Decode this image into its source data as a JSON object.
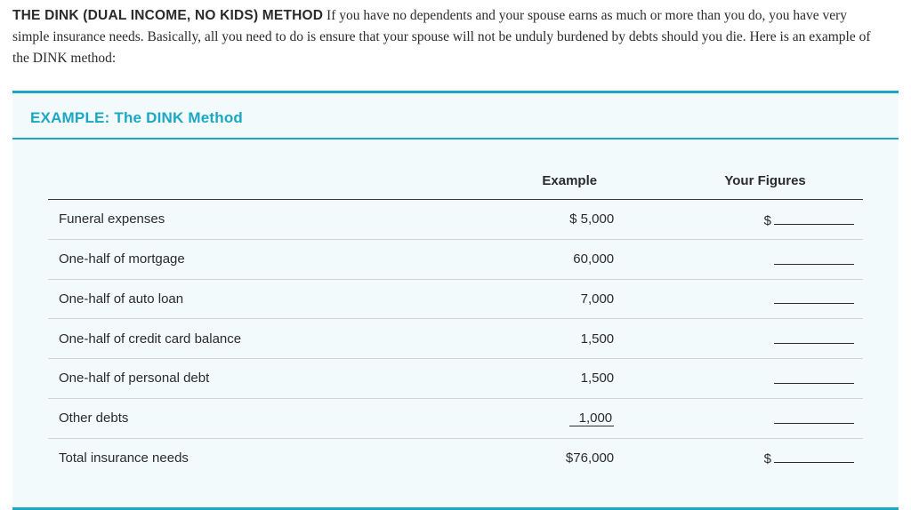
{
  "intro": {
    "heading": "THE DINK (DUAL INCOME, NO KIDS) METHOD",
    "body": " If you have no dependents and your spouse earns as much or more than you do, you have very simple insurance needs. Basically, all you need to do is ensure that your spouse will not be unduly burdened by debts should you die. Here is an example of the DINK method:"
  },
  "example": {
    "title": "EXAMPLE: The DINK Method",
    "accent_color": "#1aa8c4",
    "background_color": "#f2fafb"
  },
  "table": {
    "columns": {
      "label": "",
      "example": "Example",
      "yours": "Your Figures"
    },
    "rows": [
      {
        "label": "Funeral expenses",
        "example": "$  5,000",
        "yours_prefix": "$",
        "underlined": false
      },
      {
        "label": "One-half of mortgage",
        "example": "60,000",
        "yours_prefix": "",
        "underlined": false
      },
      {
        "label": "One-half of auto loan",
        "example": "7,000",
        "yours_prefix": "",
        "underlined": false
      },
      {
        "label": "One-half of credit card balance",
        "example": "1,500",
        "yours_prefix": "",
        "underlined": false
      },
      {
        "label": "One-half of personal debt",
        "example": "1,500",
        "yours_prefix": "",
        "underlined": false
      },
      {
        "label": "Other debts",
        "example": "1,000",
        "yours_prefix": "",
        "underlined": true
      },
      {
        "label": "Total insurance needs",
        "example": "$76,000",
        "yours_prefix": "$",
        "underlined": false
      }
    ]
  }
}
